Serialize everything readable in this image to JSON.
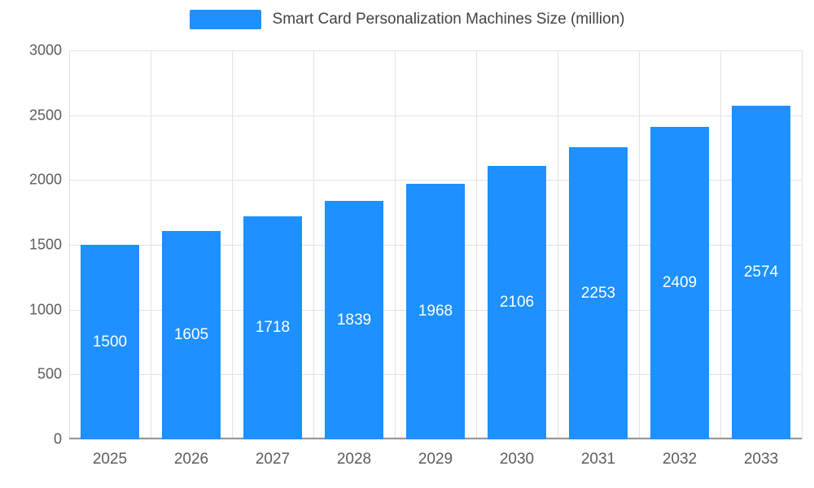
{
  "chart_data": {
    "type": "bar",
    "title": "Smart Card Personalization Machines Size (million)",
    "categories": [
      "2025",
      "2026",
      "2027",
      "2028",
      "2029",
      "2030",
      "2031",
      "2032",
      "2033"
    ],
    "values": [
      1500,
      1605,
      1718,
      1839,
      1968,
      2106,
      2253,
      2409,
      2574
    ],
    "xlabel": "",
    "ylabel": "",
    "ylim": [
      0,
      3000
    ],
    "yticks": [
      0,
      500,
      1000,
      1500,
      2000,
      2500,
      3000
    ],
    "grid": "on",
    "legend_position": "top-center",
    "bar_color": "#1e90ff",
    "value_label_color": "#ffffff",
    "axis_label_color": "#5c5c5c",
    "grid_color": "#e2e2e2"
  }
}
